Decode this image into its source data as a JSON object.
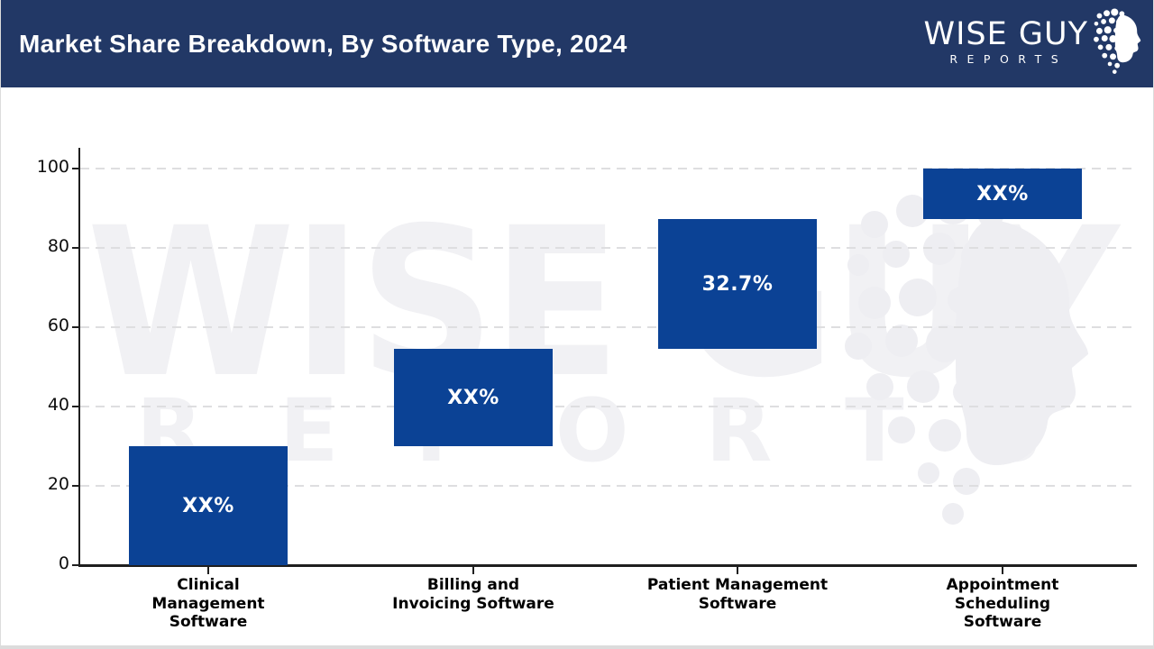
{
  "header": {
    "title": "Market Share Breakdown, By Software Type, 2024",
    "bg_color": "#223866",
    "logo": {
      "line1": "WISE GUY",
      "line2": "REPORTS"
    }
  },
  "watermark": {
    "line1": "WISE GUY",
    "line2": "REPORTS"
  },
  "chart_data": {
    "type": "bar",
    "variant": "floating-waterfall",
    "title": "Market Share Breakdown, By Software Type, 2024",
    "xlabel": "",
    "ylabel": "",
    "ylim": [
      0,
      100
    ],
    "yticks": [
      0,
      20,
      40,
      60,
      80,
      100
    ],
    "grid": "horizontal-dashed",
    "legend": "none",
    "bar_color": "#0b4295",
    "label_color": "#ffffff",
    "categories": [
      {
        "name": "Clinical Management Software",
        "lines": [
          "Clinical",
          "Management",
          "Software"
        ]
      },
      {
        "name": "Billing and Invoicing Software",
        "lines": [
          "Billing and",
          "Invoicing Software"
        ]
      },
      {
        "name": "Patient Management Software",
        "lines": [
          "Patient Management",
          "Software"
        ]
      },
      {
        "name": "Appointment Scheduling Software",
        "lines": [
          "Appointment",
          "Scheduling",
          "Software"
        ]
      }
    ],
    "segments": [
      {
        "category": "Clinical Management Software",
        "start": 0,
        "end": 30,
        "label": "XX%"
      },
      {
        "category": "Billing and Invoicing Software",
        "start": 30,
        "end": 54.5,
        "label": "XX%"
      },
      {
        "category": "Patient Management Software",
        "start": 54.5,
        "end": 87.2,
        "label": "32.7%"
      },
      {
        "category": "Appointment Scheduling Software",
        "start": 87.2,
        "end": 100,
        "label": "XX%"
      }
    ]
  }
}
